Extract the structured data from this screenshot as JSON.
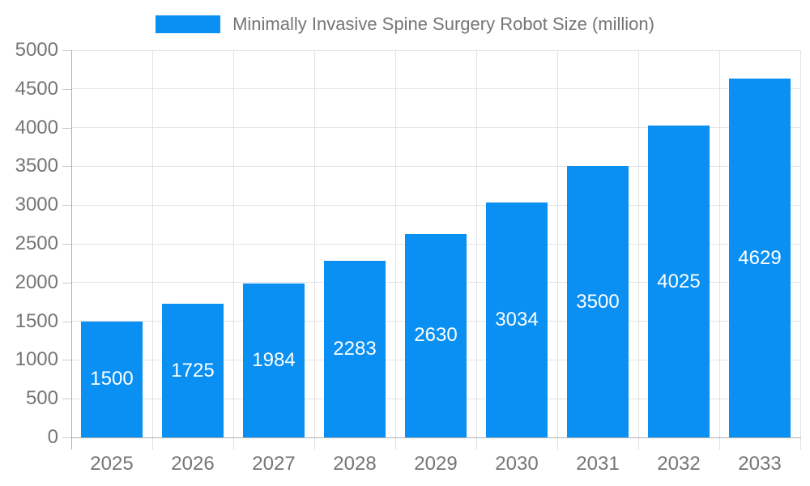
{
  "legend": {
    "label": "Minimally Invasive Spine Surgery Robot Size (million)"
  },
  "chart_data": {
    "type": "bar",
    "title": "Minimally Invasive Spine Surgery Robot Size (million)",
    "categories": [
      "2025",
      "2026",
      "2027",
      "2028",
      "2029",
      "2030",
      "2031",
      "2032",
      "2033"
    ],
    "values": [
      1500,
      1725,
      1984,
      2283,
      2630,
      3034,
      3500,
      4025,
      4629
    ],
    "series": [
      {
        "name": "Minimally Invasive Spine Surgery Robot Size (million)",
        "values": [
          1500,
          1725,
          1984,
          2283,
          2630,
          3034,
          3500,
          4025,
          4629
        ]
      }
    ],
    "xlabel": "",
    "ylabel": "",
    "ylim": [
      0,
      5000
    ],
    "yticks": [
      0,
      500,
      1000,
      1500,
      2000,
      2500,
      3000,
      3500,
      4000,
      4500,
      5000
    ],
    "grid": true,
    "legend_position": "top",
    "value_labels": "inside-center-white"
  },
  "colors": {
    "bar": "#0a8ff2",
    "axis_text": "#757575",
    "title_text": "#757575",
    "value_label_text": "#ffffff",
    "gridline": "#e3e3e3",
    "axis_line": "#b0b0b0",
    "background": "#ffffff"
  }
}
